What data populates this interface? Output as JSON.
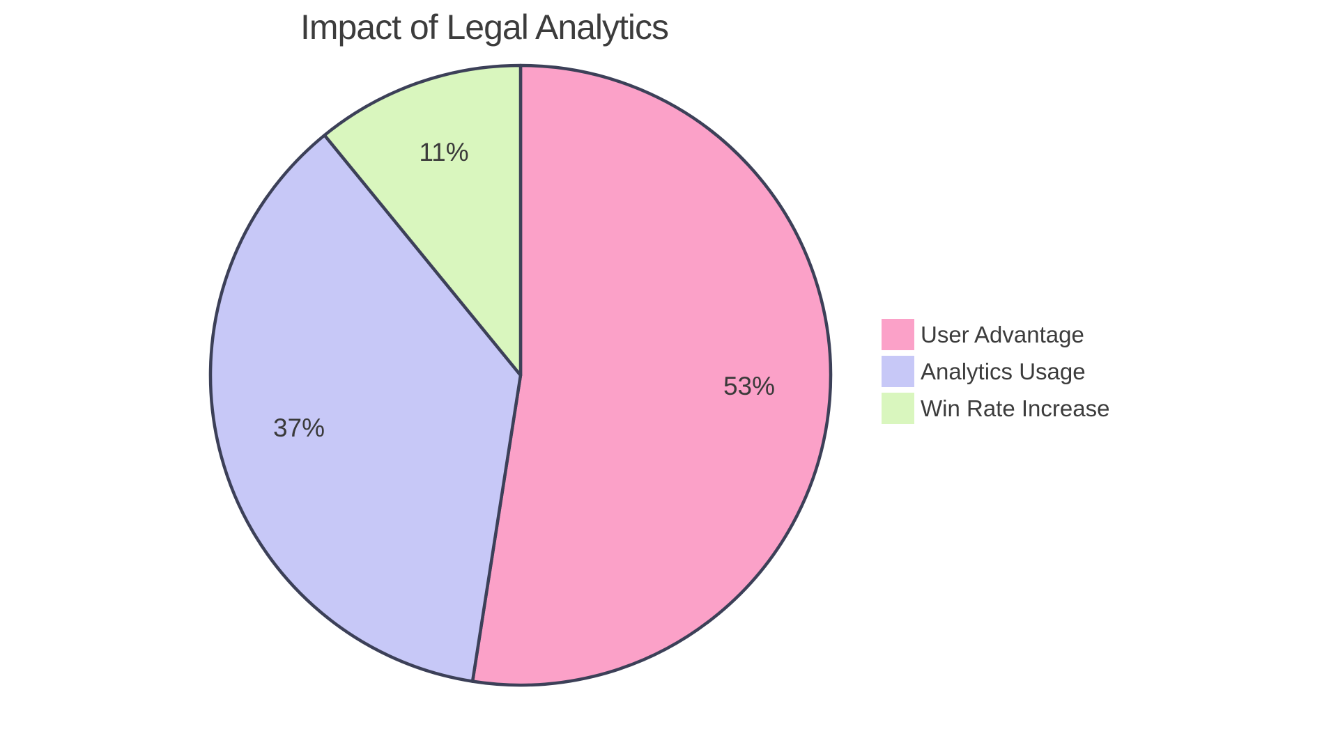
{
  "chart_data": {
    "type": "pie",
    "title": "Impact of Legal Analytics",
    "series": [
      {
        "label": "User Advantage",
        "value": 53,
        "percent_label": "53%",
        "color": "#FBA1C8"
      },
      {
        "label": "Analytics Usage",
        "value": 37,
        "percent_label": "37%",
        "color": "#C7C8F7"
      },
      {
        "label": "Win Rate Increase",
        "value": 11,
        "percent_label": "11%",
        "color": "#D9F6BE"
      }
    ],
    "start_angle_deg": 0,
    "direction": "clockwise",
    "legend_position": "right",
    "value_labels": "percent-inside"
  },
  "colors": {
    "outline": "#3C4058",
    "title_text": "#3C3C3C",
    "label_text": "#3A3A3A",
    "background": "#FFFFFF"
  }
}
